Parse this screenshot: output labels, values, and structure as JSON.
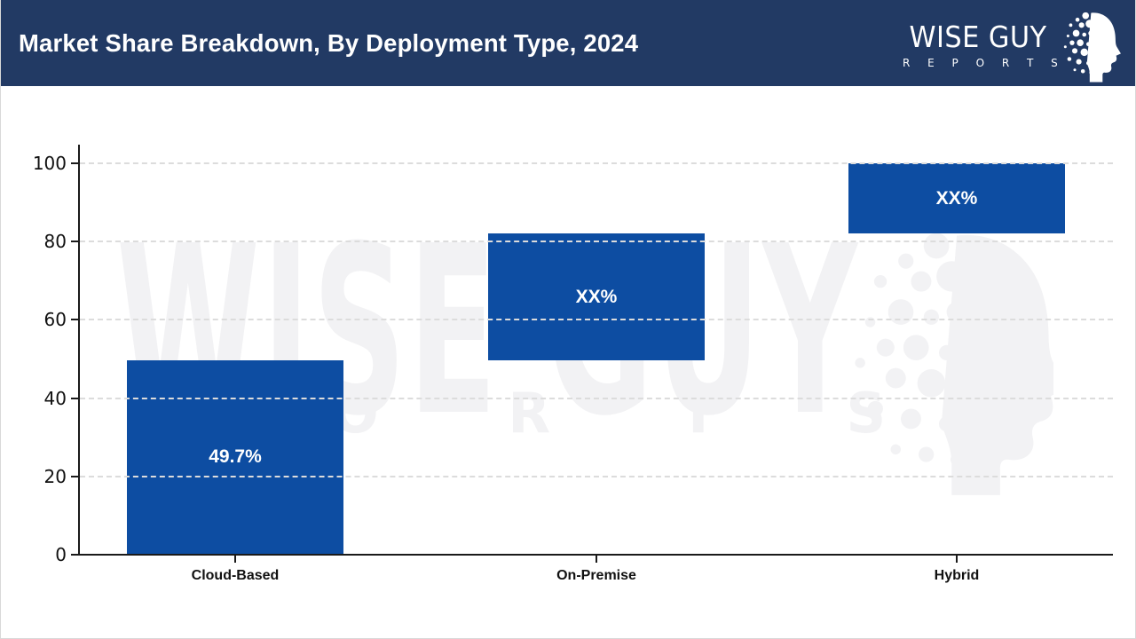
{
  "header": {
    "title": "Market Share Breakdown, By Deployment Type, 2024",
    "logo": {
      "line1": "WISE GUY",
      "line2": "R E P O R T S"
    }
  },
  "watermark": {
    "line1": "WISE GUY",
    "line2": "P O R T S"
  },
  "colors": {
    "header_bg": "#223a64",
    "title_text": "#ffffff",
    "bar": "#0d4da2",
    "bar_label": "#ffffff",
    "grid": "#dcdcdc",
    "axis": "#1a1a1a",
    "watermark": "#f2f2f4"
  },
  "chart_data": {
    "type": "bar",
    "subtype": "waterfall-stacked-to-100",
    "title": "Market Share Breakdown, By Deployment Type, 2024",
    "xlabel": "",
    "ylabel": "",
    "categories": [
      "Cloud-Based",
      "On-Premise",
      "Hybrid"
    ],
    "segments": [
      {
        "category": "Cloud-Based",
        "start": 0,
        "end": 49.7,
        "value_label": "49.7%"
      },
      {
        "category": "On-Premise",
        "start": 49.7,
        "end": 82,
        "value_label": "XX%"
      },
      {
        "category": "Hybrid",
        "start": 82,
        "end": 100,
        "value_label": "XX%"
      }
    ],
    "yticks": [
      0,
      20,
      40,
      60,
      80,
      100
    ],
    "ylim": [
      0,
      105
    ],
    "grid": "horizontal-dashed",
    "legend": "none"
  }
}
